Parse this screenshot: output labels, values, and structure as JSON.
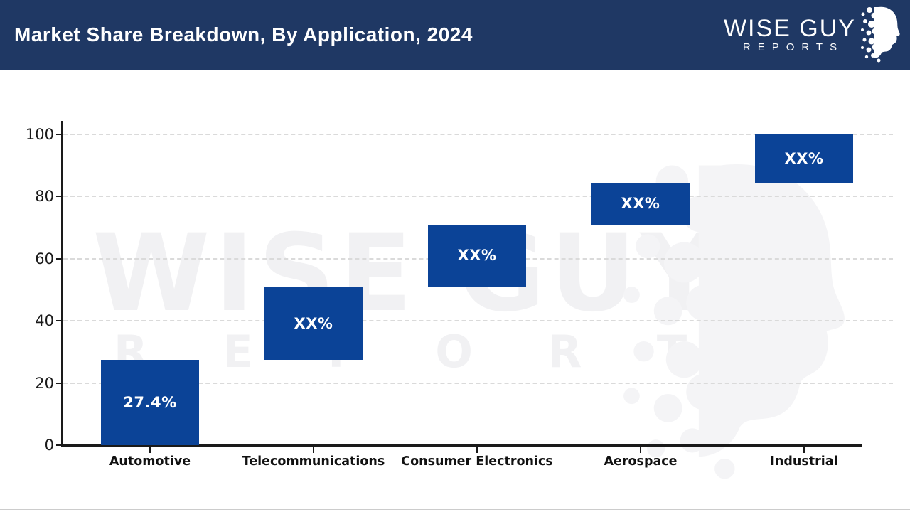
{
  "header": {
    "title": "Market Share Breakdown, By Application, 2024",
    "bg_color": "#1f3864",
    "logo": {
      "line1": "WISE GUY",
      "line2": "REPORTS"
    }
  },
  "watermark": {
    "line1": "WISE GUY",
    "line2": "R E P O R T S"
  },
  "chart_data": {
    "type": "bar",
    "subtype": "floating-waterfall",
    "title": "Market Share Breakdown, By Application, 2024",
    "xlabel": "",
    "ylabel": "",
    "ylim": [
      0,
      105
    ],
    "yticks": [
      0,
      20,
      40,
      60,
      80,
      100
    ],
    "grid": "dashed-horizontal",
    "legend": "none",
    "bar_color": "#0b4397",
    "bar_label_color": "#ffffff",
    "categories": [
      "Automotive",
      "Telecommunications",
      "Consumer Electronics",
      "Aerospace",
      "Industrial"
    ],
    "bars": [
      {
        "category": "Automotive",
        "start": 0,
        "end": 27.4,
        "label": "27.4%"
      },
      {
        "category": "Telecommunications",
        "start": 27.4,
        "end": 51,
        "label": "XX%"
      },
      {
        "category": "Consumer Electronics",
        "start": 51,
        "end": 71,
        "label": "XX%"
      },
      {
        "category": "Aerospace",
        "start": 71,
        "end": 84.4,
        "label": "XX%"
      },
      {
        "category": "Industrial",
        "start": 84.4,
        "end": 100,
        "label": "XX%"
      }
    ]
  }
}
